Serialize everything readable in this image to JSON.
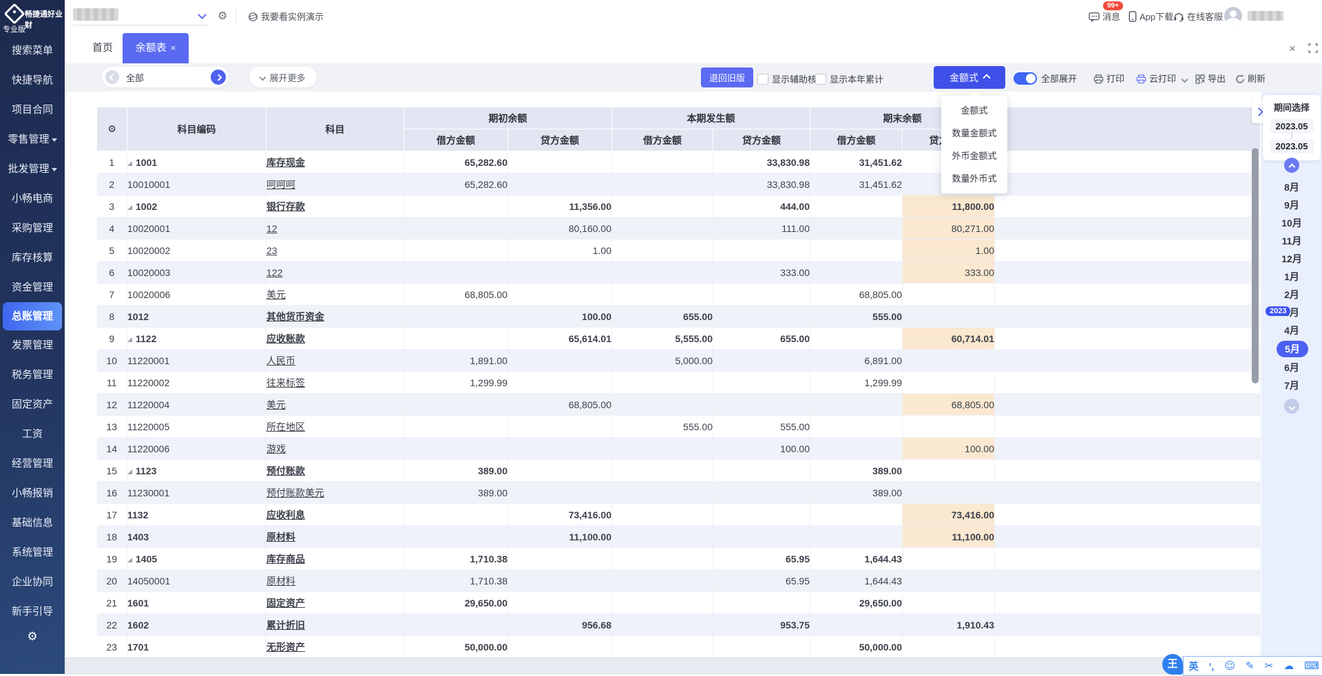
{
  "brand": {
    "name": "畅捷通好业财",
    "edition": "专业版"
  },
  "topbar": {
    "demo_link": "我要看实例演示",
    "messages": "消息",
    "messages_badge": "99+",
    "app_download": "App下载",
    "online_service": "在线客服"
  },
  "tabs": {
    "home": "首页",
    "current": "余额表",
    "close": "×"
  },
  "sidebar": {
    "items": [
      {
        "label": "搜索菜单",
        "arrow": false,
        "active": false
      },
      {
        "label": "快捷导航",
        "arrow": false,
        "active": false
      },
      {
        "label": "项目合同",
        "arrow": false,
        "active": false
      },
      {
        "label": "零售管理",
        "arrow": true,
        "active": false
      },
      {
        "label": "批发管理",
        "arrow": true,
        "active": false
      },
      {
        "label": "小畅电商",
        "arrow": false,
        "active": false
      },
      {
        "label": "采购管理",
        "arrow": false,
        "active": false
      },
      {
        "label": "库存核算",
        "arrow": false,
        "active": false
      },
      {
        "label": "资金管理",
        "arrow": false,
        "active": false
      },
      {
        "label": "总账管理",
        "arrow": false,
        "active": true
      },
      {
        "label": "发票管理",
        "arrow": false,
        "active": false
      },
      {
        "label": "税务管理",
        "arrow": false,
        "active": false
      },
      {
        "label": "固定资产",
        "arrow": false,
        "active": false
      },
      {
        "label": "工资",
        "arrow": false,
        "active": false
      },
      {
        "label": "经营管理",
        "arrow": false,
        "active": false
      },
      {
        "label": "小畅报销",
        "arrow": false,
        "active": false
      },
      {
        "label": "基础信息",
        "arrow": false,
        "active": false
      },
      {
        "label": "系统管理",
        "arrow": false,
        "active": false
      },
      {
        "label": "企业协同",
        "arrow": false,
        "active": false
      },
      {
        "label": "新手引导",
        "arrow": false,
        "active": false
      }
    ]
  },
  "toolbar": {
    "filter_value": "全部",
    "expand_more": "展开更多",
    "back_old": "退回旧版",
    "show_aux": "显示辅助核算",
    "show_ytd": "显示本年累计",
    "format_button": "金额式",
    "expand_all": "全部展开",
    "print": "打印",
    "cloud_print": "云打印",
    "export": "导出",
    "refresh": "刷新"
  },
  "format_menu": {
    "items": [
      "金额式",
      "数量金额式",
      "外币金额式",
      "数量外币式"
    ]
  },
  "period_panel": {
    "title": "期间选择",
    "from": "2023.05",
    "to": "2023.05",
    "year_badge": "2023",
    "months": [
      "8月",
      "9月",
      "10月",
      "11月",
      "12月",
      "1月",
      "2月",
      "3月",
      "4月",
      "5月",
      "6月",
      "7月"
    ],
    "active_month": "5月",
    "year_badge_before": "1月"
  },
  "table": {
    "headers": {
      "code": "科目编码",
      "account": "科目",
      "groups": [
        "期初余额",
        "本期发生额",
        "期末余额"
      ],
      "debit": "借方金额",
      "credit": "贷方金额"
    },
    "rows": [
      {
        "n": "1",
        "code": "1001",
        "name": "库存现金",
        "lv": 1,
        "exp": true,
        "oid": "65,282.60",
        "oic": "",
        "cd": "",
        "cc": "33,830.98",
        "ed": "31,451.62",
        "ec": "",
        "orange": false
      },
      {
        "n": "2",
        "code": "10010001",
        "name": "呵呵呵",
        "lv": 2,
        "exp": false,
        "oid": "65,282.60",
        "oic": "",
        "cd": "",
        "cc": "33,830.98",
        "ed": "31,451.62",
        "ec": "",
        "orange": false
      },
      {
        "n": "3",
        "code": "1002",
        "name": "银行存款",
        "lv": 1,
        "exp": true,
        "oid": "",
        "oic": "11,356.00",
        "cd": "",
        "cc": "444.00",
        "ed": "",
        "ec": "11,800.00",
        "orange": true
      },
      {
        "n": "4",
        "code": "10020001",
        "name": "12",
        "lv": 2,
        "exp": false,
        "oid": "",
        "oic": "80,160.00",
        "cd": "",
        "cc": "111.00",
        "ed": "",
        "ec": "80,271.00",
        "orange": true
      },
      {
        "n": "5",
        "code": "10020002",
        "name": "23",
        "lv": 2,
        "exp": false,
        "oid": "",
        "oic": "1.00",
        "cd": "",
        "cc": "",
        "ed": "",
        "ec": "1.00",
        "orange": true
      },
      {
        "n": "6",
        "code": "10020003",
        "name": "122",
        "lv": 2,
        "exp": false,
        "oid": "",
        "oic": "",
        "cd": "",
        "cc": "333.00",
        "ed": "",
        "ec": "333.00",
        "orange": true
      },
      {
        "n": "7",
        "code": "10020006",
        "name": "美元",
        "lv": 2,
        "exp": false,
        "oid": "68,805.00",
        "oic": "",
        "cd": "",
        "cc": "",
        "ed": "68,805.00",
        "ec": "",
        "orange": false
      },
      {
        "n": "8",
        "code": "1012",
        "name": "其他货币资金",
        "lv": 1,
        "exp": false,
        "oid": "",
        "oic": "100.00",
        "cd": "655.00",
        "cc": "",
        "ed": "555.00",
        "ec": "",
        "orange": false
      },
      {
        "n": "9",
        "code": "1122",
        "name": "应收账款",
        "lv": 1,
        "exp": true,
        "oid": "",
        "oic": "65,614.01",
        "cd": "5,555.00",
        "cc": "655.00",
        "ed": "",
        "ec": "60,714.01",
        "orange": true
      },
      {
        "n": "10",
        "code": "11220001",
        "name": "人民币",
        "lv": 2,
        "exp": false,
        "oid": "1,891.00",
        "oic": "",
        "cd": "5,000.00",
        "cc": "",
        "ed": "6,891.00",
        "ec": "",
        "orange": false
      },
      {
        "n": "11",
        "code": "11220002",
        "name": "往来标签",
        "lv": 2,
        "exp": false,
        "oid": "1,299.99",
        "oic": "",
        "cd": "",
        "cc": "",
        "ed": "1,299.99",
        "ec": "",
        "orange": false
      },
      {
        "n": "12",
        "code": "11220004",
        "name": "美元",
        "lv": 2,
        "exp": false,
        "oid": "",
        "oic": "68,805.00",
        "cd": "",
        "cc": "",
        "ed": "",
        "ec": "68,805.00",
        "orange": true
      },
      {
        "n": "13",
        "code": "11220005",
        "name": "所在地区",
        "lv": 2,
        "exp": false,
        "oid": "",
        "oic": "",
        "cd": "555.00",
        "cc": "555.00",
        "ed": "",
        "ec": "",
        "orange": false
      },
      {
        "n": "14",
        "code": "11220006",
        "name": "游戏",
        "lv": 2,
        "exp": false,
        "oid": "",
        "oic": "",
        "cd": "",
        "cc": "100.00",
        "ed": "",
        "ec": "100.00",
        "orange": true
      },
      {
        "n": "15",
        "code": "1123",
        "name": "预付账款",
        "lv": 1,
        "exp": true,
        "oid": "389.00",
        "oic": "",
        "cd": "",
        "cc": "",
        "ed": "389.00",
        "ec": "",
        "orange": false
      },
      {
        "n": "16",
        "code": "11230001",
        "name": "预付账款美元",
        "lv": 2,
        "exp": false,
        "oid": "389.00",
        "oic": "",
        "cd": "",
        "cc": "",
        "ed": "389.00",
        "ec": "",
        "orange": false
      },
      {
        "n": "17",
        "code": "1132",
        "name": "应收利息",
        "lv": 1,
        "exp": false,
        "oid": "",
        "oic": "73,416.00",
        "cd": "",
        "cc": "",
        "ed": "",
        "ec": "73,416.00",
        "orange": true
      },
      {
        "n": "18",
        "code": "1403",
        "name": "原材料",
        "lv": 1,
        "exp": false,
        "oid": "",
        "oic": "11,100.00",
        "cd": "",
        "cc": "",
        "ed": "",
        "ec": "11,100.00",
        "orange": true
      },
      {
        "n": "19",
        "code": "1405",
        "name": "库存商品",
        "lv": 1,
        "exp": true,
        "oid": "1,710.38",
        "oic": "",
        "cd": "",
        "cc": "65.95",
        "ed": "1,644.43",
        "ec": "",
        "orange": false
      },
      {
        "n": "20",
        "code": "14050001",
        "name": "原材料",
        "lv": 2,
        "exp": false,
        "oid": "1,710.38",
        "oic": "",
        "cd": "",
        "cc": "65.95",
        "ed": "1,644.43",
        "ec": "",
        "orange": false
      },
      {
        "n": "21",
        "code": "1601",
        "name": "固定资产",
        "lv": 1,
        "exp": false,
        "oid": "29,650.00",
        "oic": "",
        "cd": "",
        "cc": "",
        "ed": "29,650.00",
        "ec": "",
        "orange": false
      },
      {
        "n": "22",
        "code": "1602",
        "name": "累计折旧",
        "lv": 1,
        "exp": false,
        "oid": "",
        "oic": "956.68",
        "cd": "",
        "cc": "953.75",
        "ed": "",
        "ec": "1,910.43",
        "orange": false
      },
      {
        "n": "23",
        "code": "1701",
        "name": "无形资产",
        "lv": 1,
        "exp": false,
        "oid": "50,000.00",
        "oic": "",
        "cd": "",
        "cc": "",
        "ed": "50,000.00",
        "ec": "",
        "orange": false
      }
    ]
  },
  "taskbar": {
    "ime_bubble": "王",
    "icons": [
      {
        "name": "ime-lang-en",
        "glyph": "英",
        "txt": true
      },
      {
        "name": "ime-punct",
        "glyph": "’,",
        "txt": true
      },
      {
        "name": "smiley-icon",
        "glyph": "☺"
      },
      {
        "name": "pencil-icon",
        "glyph": "✎"
      },
      {
        "name": "scissors-icon",
        "glyph": "✂"
      },
      {
        "name": "cloud-icon",
        "glyph": "☁"
      },
      {
        "name": "keyboard-icon",
        "glyph": "⌨"
      },
      {
        "name": "person-icon",
        "glyph": "",
        "shape": "person"
      },
      {
        "name": "shirt-icon",
        "glyph": "",
        "shape": "shirt"
      },
      {
        "name": "gear-icon",
        "glyph": "⚙"
      }
    ]
  }
}
